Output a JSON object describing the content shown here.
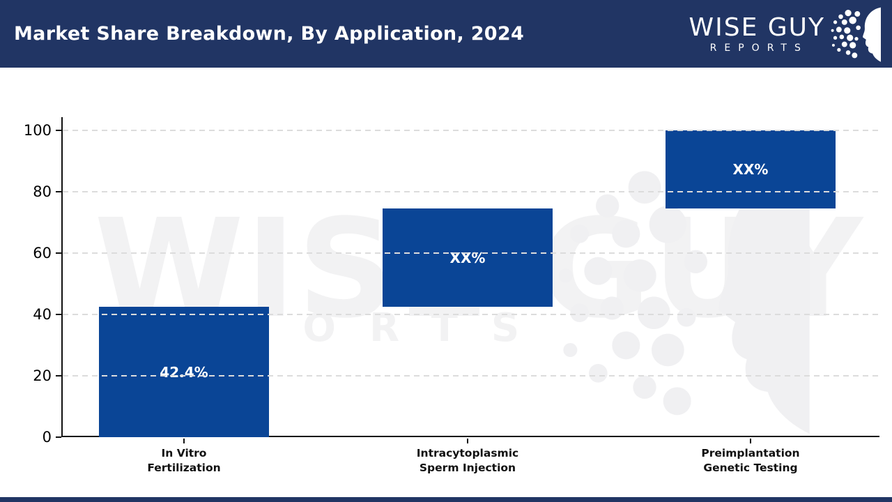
{
  "header": {
    "title": "Market Share Breakdown, By Application, 2024",
    "logo": {
      "name": "Wise Guy Reports",
      "line1": "WISE GUY",
      "line2": "REPORTS"
    }
  },
  "watermark": {
    "line1": "WISE GUY",
    "line2": "REPORTS"
  },
  "chart_data": {
    "type": "bar",
    "subtype": "waterfall",
    "title": "Market Share Breakdown, By Application, 2024",
    "categories": [
      "In Vitro\nFertilization",
      "Intracytoplasmic\nSperm Injection",
      "Preimplantation\nGenetic Testing"
    ],
    "series": [
      {
        "name": "In Vitro Fertilization",
        "start": 0,
        "end": 42.4,
        "value_label": "42.4%"
      },
      {
        "name": "Intracytoplasmic Sperm Injection",
        "start": 42.4,
        "end": 74.5,
        "value_label": "XX%"
      },
      {
        "name": "Preimplantation Genetic Testing",
        "start": 74.5,
        "end": 100,
        "value_label": "XX%"
      }
    ],
    "yticks": [
      0,
      20,
      40,
      60,
      80,
      100
    ],
    "ylim": [
      0,
      104
    ],
    "grid": true,
    "legend": false,
    "bar_color": "#0a4596",
    "bar_label_color": "#ffffff"
  },
  "colors": {
    "header_bg": "#213564",
    "footer_bg": "#213564",
    "grid": "#dcdcdc",
    "axis": "#000000",
    "watermark": "#f2f2f3"
  }
}
